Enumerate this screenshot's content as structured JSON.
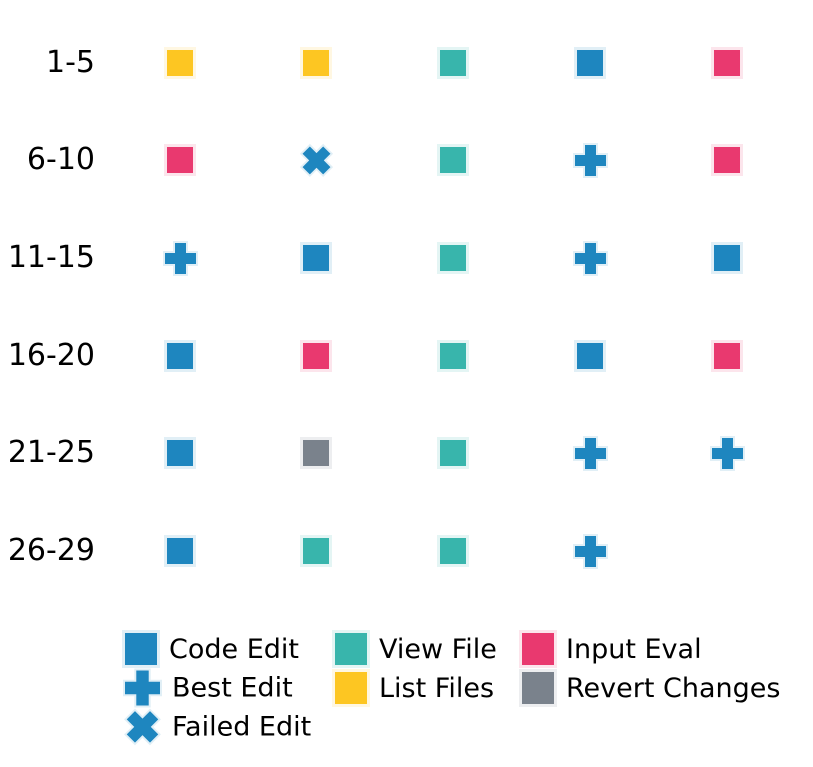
{
  "figure": {
    "background": "#ffffff",
    "text_color": "#000000"
  },
  "chart_data": {
    "type": "scatter",
    "title": "",
    "xlabel": "",
    "ylabel": "",
    "grid": false,
    "description": "Categorical event grid: rows are step ranges (5 steps per row), each cell marker encodes an action type by shape and color",
    "row_labels": [
      "1-5",
      "6-10",
      "11-15",
      "16-20",
      "21-25",
      "26-29"
    ],
    "rows": [
      {
        "label": "1-5",
        "actions": [
          "list_files",
          "list_files",
          "view_file",
          "code_edit",
          "input_eval"
        ]
      },
      {
        "label": "6-10",
        "actions": [
          "input_eval",
          "failed_edit",
          "view_file",
          "best_edit",
          "input_eval"
        ]
      },
      {
        "label": "11-15",
        "actions": [
          "best_edit",
          "code_edit",
          "view_file",
          "best_edit",
          "code_edit"
        ]
      },
      {
        "label": "16-20",
        "actions": [
          "code_edit",
          "input_eval",
          "view_file",
          "code_edit",
          "input_eval"
        ]
      },
      {
        "label": "21-25",
        "actions": [
          "code_edit",
          "revert_changes",
          "view_file",
          "best_edit",
          "best_edit"
        ]
      },
      {
        "label": "26-29",
        "actions": [
          "code_edit",
          "view_file",
          "view_file",
          "best_edit",
          null
        ]
      }
    ],
    "action_types": {
      "code_edit": {
        "label": "Code Edit",
        "marker": "square",
        "color": "#1e86bf"
      },
      "best_edit": {
        "label": "Best Edit",
        "marker": "plus",
        "color": "#1e86bf"
      },
      "failed_edit": {
        "label": "Failed Edit",
        "marker": "x",
        "color": "#1e86bf"
      },
      "view_file": {
        "label": "View File",
        "marker": "square",
        "color": "#38b5ac"
      },
      "list_files": {
        "label": "List Files",
        "marker": "square",
        "color": "#fdc622"
      },
      "input_eval": {
        "label": "Input Eval",
        "marker": "square",
        "color": "#e9396f"
      },
      "revert_changes": {
        "label": "Revert Changes",
        "marker": "square",
        "color": "#7a828c"
      }
    },
    "legend": {
      "position": "bottom",
      "columns": [
        [
          "code_edit",
          "best_edit",
          "failed_edit"
        ],
        [
          "view_file",
          "list_files"
        ],
        [
          "input_eval",
          "revert_changes"
        ]
      ]
    }
  }
}
